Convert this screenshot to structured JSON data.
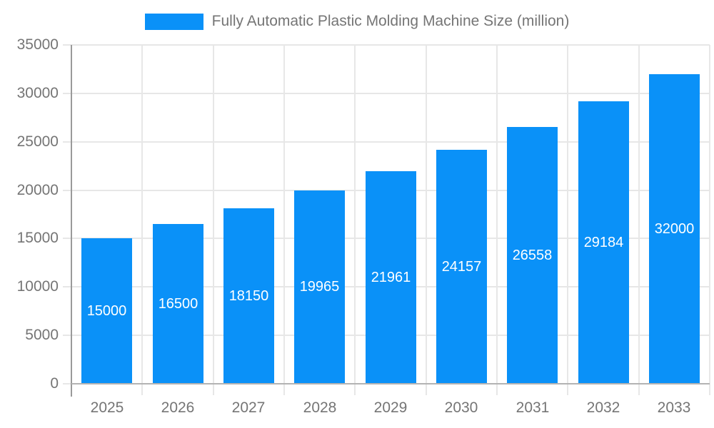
{
  "legend": {
    "label": "Fully Automatic Plastic Molding Machine Size (million)"
  },
  "chart_data": {
    "type": "bar",
    "title": "",
    "series": [
      {
        "name": "Fully Automatic Plastic Molding Machine Size (million)",
        "values": [
          15000,
          16500,
          18150,
          19965,
          21961,
          24157,
          26558,
          29184,
          32000
        ]
      }
    ],
    "categories": [
      "2025",
      "2026",
      "2027",
      "2028",
      "2029",
      "2030",
      "2031",
      "2032",
      "2033"
    ],
    "values": [
      15000,
      16500,
      18150,
      19965,
      21961,
      24157,
      26558,
      29184,
      32000
    ],
    "bar_value_labels": [
      "15000",
      "16500",
      "18150",
      "19965",
      "21961",
      "24157",
      "26558",
      "29184",
      "32000"
    ],
    "xlabel": "",
    "ylabel": "",
    "ylim": [
      0,
      35000
    ],
    "yticks": [
      0,
      5000,
      10000,
      15000,
      20000,
      25000,
      30000,
      35000
    ],
    "grid": true,
    "legend_position": "top"
  },
  "colors": {
    "bar": "#0a91f8",
    "grid": "#e7e7e7",
    "axis_line": "#9a9a9a",
    "baseline": "#b3b3b3",
    "tick_text": "#757575",
    "bar_label_text": "#ffffff",
    "background": "#ffffff"
  }
}
